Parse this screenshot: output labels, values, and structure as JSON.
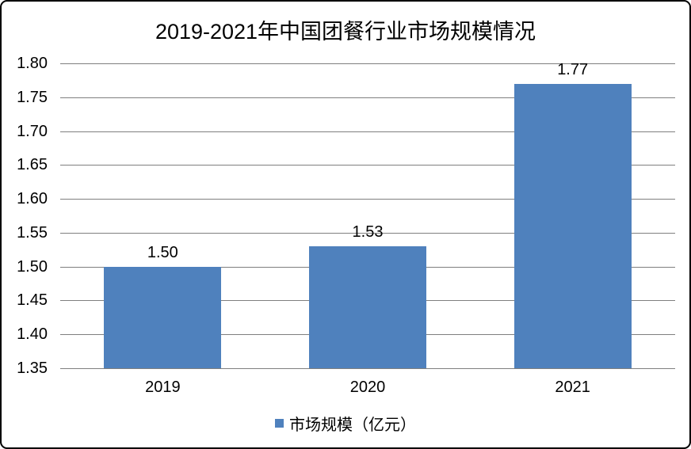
{
  "chart_data": {
    "type": "bar",
    "title": "2019-2021年中国团餐行业市场规模情况",
    "categories": [
      "2019",
      "2020",
      "2021"
    ],
    "values": [
      1.5,
      1.53,
      1.77
    ],
    "value_labels": [
      "1.50",
      "1.53",
      "1.77"
    ],
    "series_name": "市场规模（亿元）",
    "legend": [
      "市场规模（亿元）"
    ],
    "legend_position": "bottom",
    "xlabel": "",
    "ylabel": "",
    "ylim": [
      1.35,
      1.8
    ],
    "ytick_step": 0.05,
    "ytick_labels": [
      "1.35",
      "1.40",
      "1.45",
      "1.50",
      "1.55",
      "1.60",
      "1.65",
      "1.70",
      "1.75",
      "1.80"
    ],
    "grid": true
  },
  "colors": {
    "bar": "#4f81bd",
    "gridline": "#7f7f7f",
    "text": "#000000",
    "border": "#000000",
    "background": "#ffffff"
  }
}
